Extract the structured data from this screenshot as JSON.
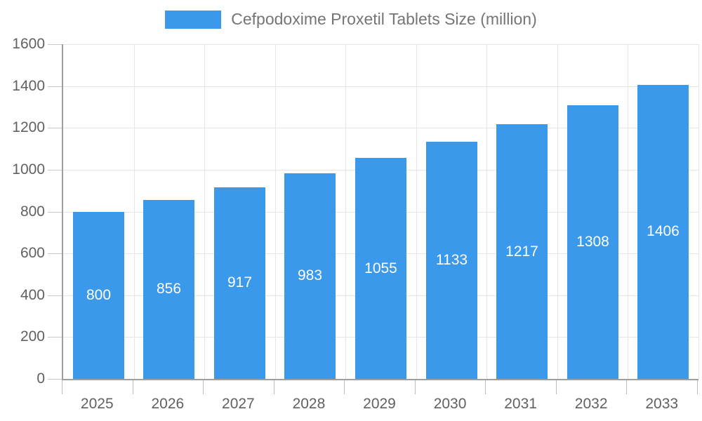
{
  "chart_data": {
    "type": "bar",
    "title": "Cefpodoxime Proxetil Tablets Size (million)",
    "categories": [
      "2025",
      "2026",
      "2027",
      "2028",
      "2029",
      "2030",
      "2031",
      "2032",
      "2033"
    ],
    "values": [
      800,
      856,
      917,
      983,
      1055,
      1133,
      1217,
      1308,
      1406
    ],
    "xlabel": "",
    "ylabel": "",
    "ylim": [
      0,
      1600
    ],
    "ytick_step": 200,
    "grid": true,
    "legend_position": "top",
    "legend_entries": [
      "Cefpodoxime Proxetil Tablets Size (million)"
    ]
  },
  "colors": {
    "bar": "#3B99EC",
    "value_label": "#ffffff",
    "gridline": "#e6e6e6",
    "axis_line": "#9e9e9e",
    "tick_label": "#616161",
    "legend_text": "#757575",
    "background": "#ffffff"
  }
}
